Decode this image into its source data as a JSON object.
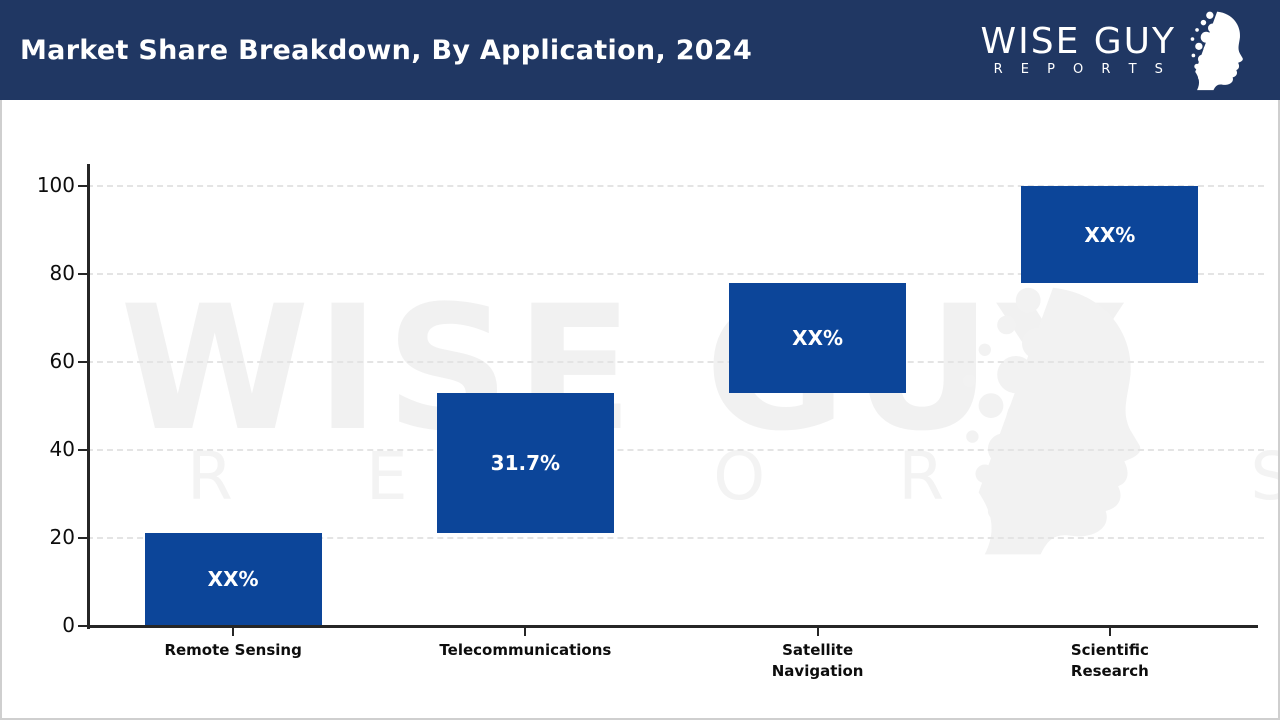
{
  "header": {
    "title": "Market Share Breakdown, By Application, 2024",
    "logo": {
      "name": "WISE GUY",
      "sub": "R E P O R T S"
    }
  },
  "watermark": {
    "line1": "WISE GUY",
    "line2": "R E P O R T S"
  },
  "chart_data": {
    "type": "bar",
    "subtype": "waterfall",
    "title": "Market Share Breakdown, By Application, 2024",
    "xlabel": "",
    "ylabel": "",
    "ylim": [
      0,
      105
    ],
    "y_ticks": [
      0,
      20,
      40,
      60,
      80,
      100
    ],
    "grid": "horizontal dashed",
    "legend": "none",
    "bar_color": "#0c4599",
    "categories": [
      "Remote Sensing",
      "Telecommunications",
      "Satellite\nNavigation",
      "Scientific\nResearch"
    ],
    "bars": [
      {
        "category": "Remote Sensing",
        "start": 0,
        "end": 21.2,
        "value_label": "XX%"
      },
      {
        "category": "Telecommunications",
        "start": 21.2,
        "end": 52.9,
        "value_label": "31.7%"
      },
      {
        "category": "Satellite Navigation",
        "start": 52.9,
        "end": 77.9,
        "value_label": "XX%"
      },
      {
        "category": "Scientific Research",
        "start": 77.9,
        "end": 100,
        "value_label": "XX%"
      }
    ]
  }
}
